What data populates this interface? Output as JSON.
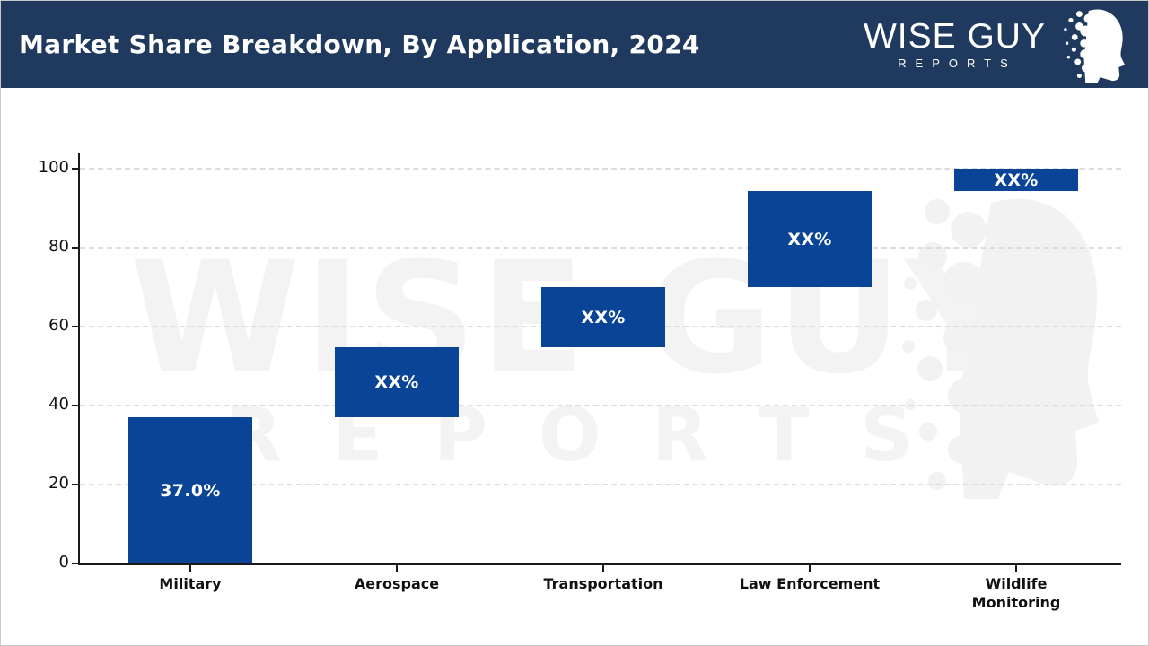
{
  "header": {
    "title": "Market Share Breakdown, By Application, 2024",
    "logo": {
      "line1": "WISE GUY",
      "line2": "REPORTS"
    }
  },
  "watermark": {
    "line1": "WISE GUY",
    "line2": "R E P O R T S"
  },
  "colors": {
    "header_bg": "#1f3a5e",
    "bar": "#0a4496",
    "bar_label": "#ffffff",
    "grid": "#dcdcdc",
    "axis": "#1a1a1a",
    "watermark": "#f3f3f3"
  },
  "chart_data": {
    "type": "bar",
    "subtype": "waterfall",
    "title": "Market Share Breakdown, By Application, 2024",
    "categories": [
      "Military",
      "Aerospace",
      "Transportation",
      "Law Enforcement",
      "Wildlife\nMonitoring"
    ],
    "segments": [
      {
        "category": "Military",
        "start": 0,
        "end": 37,
        "label": "37.0%"
      },
      {
        "category": "Aerospace",
        "start": 37,
        "end": 54.7,
        "label": "XX%"
      },
      {
        "category": "Transportation",
        "start": 54.7,
        "end": 70,
        "label": "XX%"
      },
      {
        "category": "Law Enforcement",
        "start": 70,
        "end": 94.3,
        "label": "XX%"
      },
      {
        "category": "Wildlife Monitoring",
        "start": 94.3,
        "end": 100,
        "label": "XX%"
      }
    ],
    "yticks": [
      0,
      20,
      40,
      60,
      80,
      100
    ],
    "ylim": [
      0,
      104
    ],
    "xlabel": "",
    "ylabel": "",
    "grid": "horizontal-dashed",
    "legend": "none"
  }
}
